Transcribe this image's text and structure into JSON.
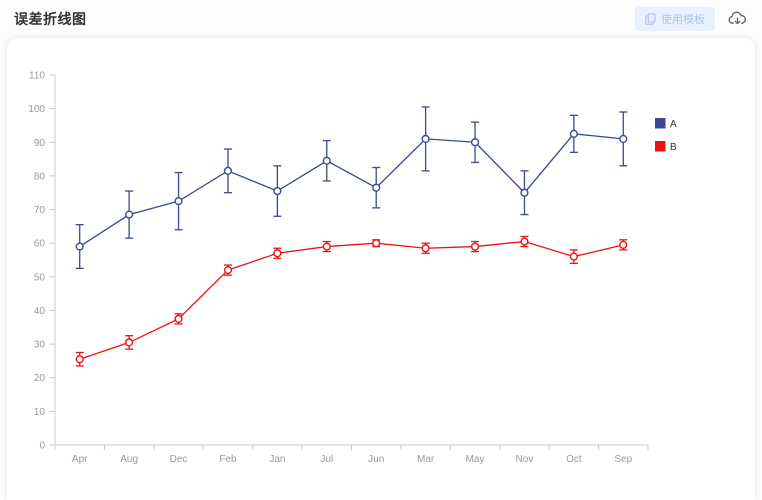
{
  "header": {
    "title": "误差折线图",
    "template_button_label": "使用模板"
  },
  "chart_data": {
    "type": "line",
    "subtype": "error-bar-line",
    "title": "误差折线图",
    "categories": [
      "Apr",
      "Aug",
      "Dec",
      "Feb",
      "Jan",
      "Jul",
      "Jun",
      "Mar",
      "May",
      "Nov",
      "Oct",
      "Sep"
    ],
    "series": [
      {
        "name": "A",
        "color": "#3b4992",
        "values": [
          59,
          68.5,
          72.5,
          81.5,
          75.5,
          84.5,
          76.5,
          91,
          90,
          75,
          92.5,
          91
        ],
        "errors": [
          6.5,
          7,
          8.5,
          6.5,
          7.5,
          6,
          6,
          9.5,
          6,
          6.5,
          5.5,
          8
        ]
      },
      {
        "name": "B",
        "color": "#ee1111",
        "values": [
          25.5,
          30.5,
          37.5,
          52,
          57,
          59,
          60,
          58.5,
          59,
          60.5,
          56,
          59.5
        ],
        "errors": [
          2,
          2,
          1.5,
          1.5,
          1.5,
          1.5,
          1,
          1.5,
          1.5,
          1.5,
          2,
          1.5
        ]
      }
    ],
    "ylim": [
      0,
      110
    ],
    "ytick_interval": 10,
    "xlabel": "",
    "ylabel": "",
    "grid": false,
    "legend_position": "right",
    "axis_color": "#cccccc",
    "tick_label_color": "#999999",
    "legend_label_color": "#333333"
  }
}
